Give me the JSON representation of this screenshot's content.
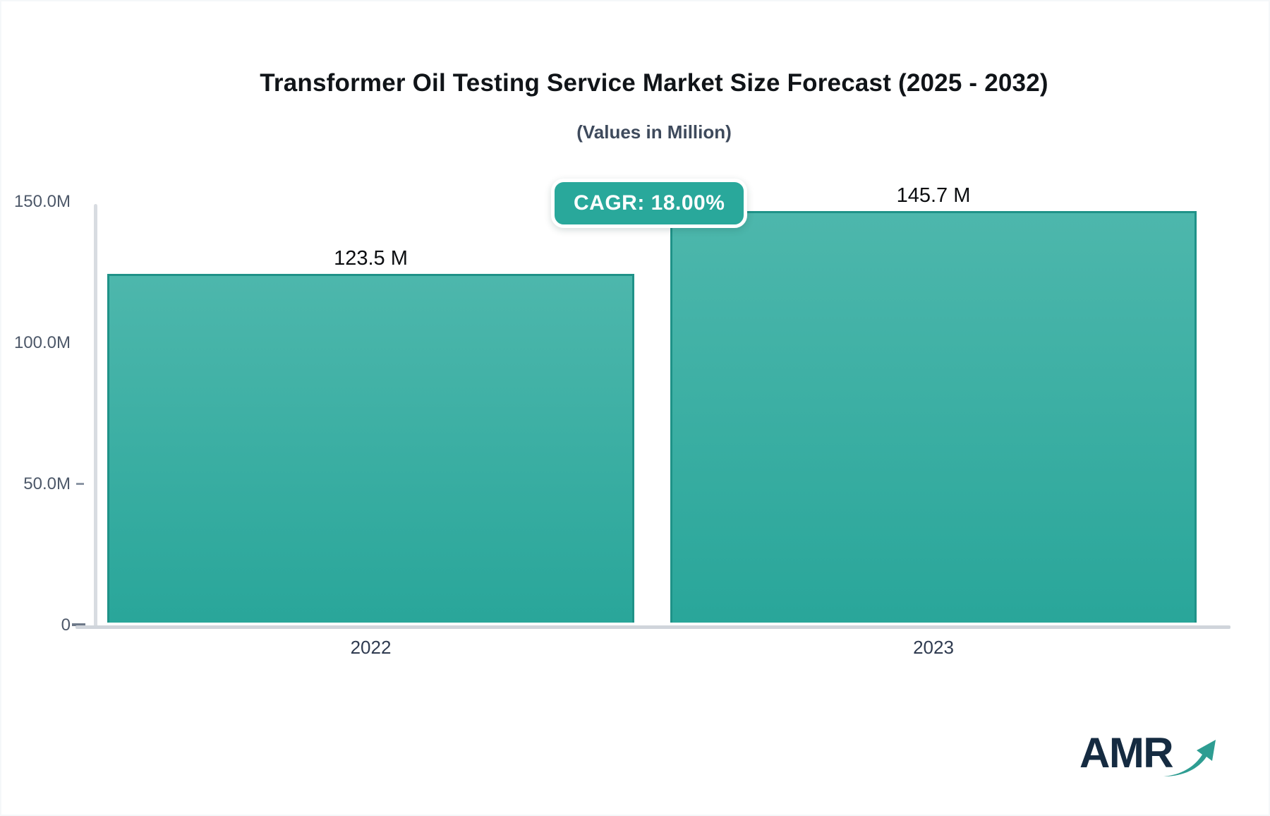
{
  "chart_data": {
    "type": "bar",
    "title": "Transformer Oil Testing Service Market Size Forecast (2025 - 2032)",
    "subtitle": "(Values in Million)",
    "categories": [
      "2022",
      "2023"
    ],
    "values": [
      123.5,
      145.7
    ],
    "value_labels": [
      "123.5 M",
      "145.7 M"
    ],
    "unit": "Million",
    "ylim": [
      0,
      150
    ],
    "ytick_labels": [
      "150.0M",
      "100.0M",
      "50.0M",
      "0"
    ],
    "grid": false,
    "legend": "none",
    "bar_color_top": "#4db7ac",
    "bar_color_bottom": "#29a69a",
    "bar_border_color": "#1f9288"
  },
  "badge": {
    "label": "CAGR: 18.00%",
    "bg_color": "#29a89b",
    "text_color": "#ffffff"
  },
  "logo": {
    "text": "AMR",
    "text_color": "#152b41",
    "arrow_color": "#2e9d92"
  }
}
